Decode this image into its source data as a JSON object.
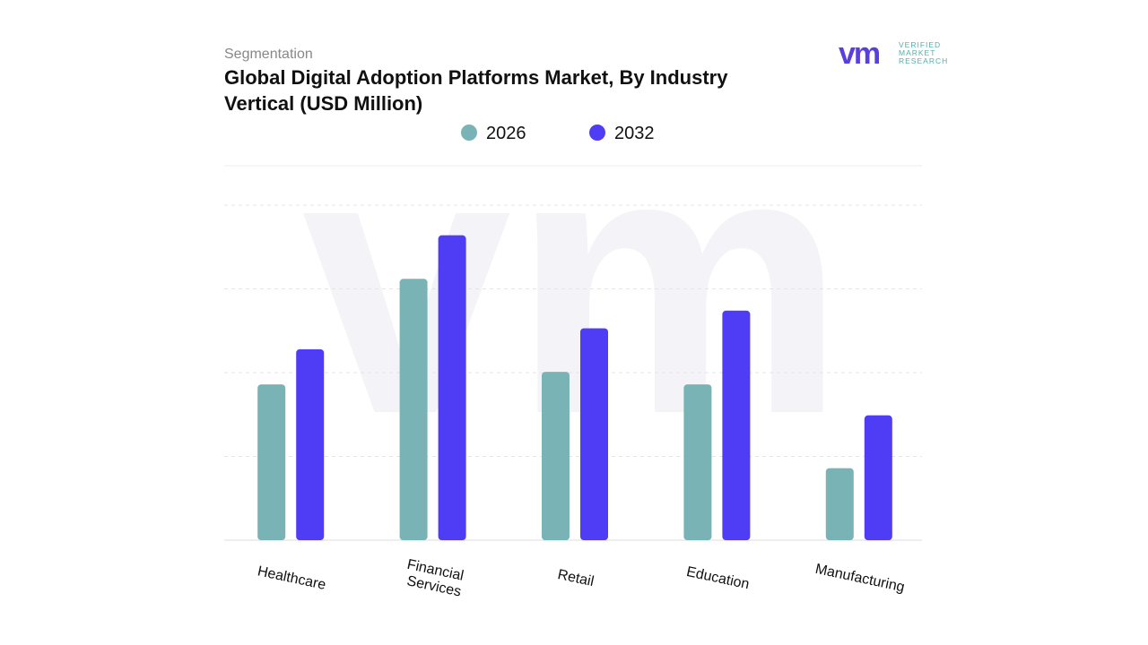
{
  "logo": {
    "mark": "vm",
    "lines": [
      "VERIFIED",
      "MARKET",
      "RESEARCH"
    ]
  },
  "chart_data": {
    "type": "bar",
    "subtitle": "Segmentation",
    "title": "Global Digital Adoption Platforms Market, By Industry Vertical (USD Million)",
    "categories": [
      "Healthcare",
      "Financial Services",
      "Retail",
      "Education",
      "Manufacturing"
    ],
    "series": [
      {
        "name": "2026",
        "color": "#7ab3b6",
        "values": [
          186,
          312,
          201,
          186,
          86
        ]
      },
      {
        "name": "2032",
        "color": "#4f3cf5",
        "values": [
          228,
          364,
          253,
          274,
          149
        ]
      }
    ],
    "ylim": [
      0,
      400
    ],
    "yticks": [
      0,
      100,
      200,
      300,
      400
    ],
    "grid": true
  }
}
